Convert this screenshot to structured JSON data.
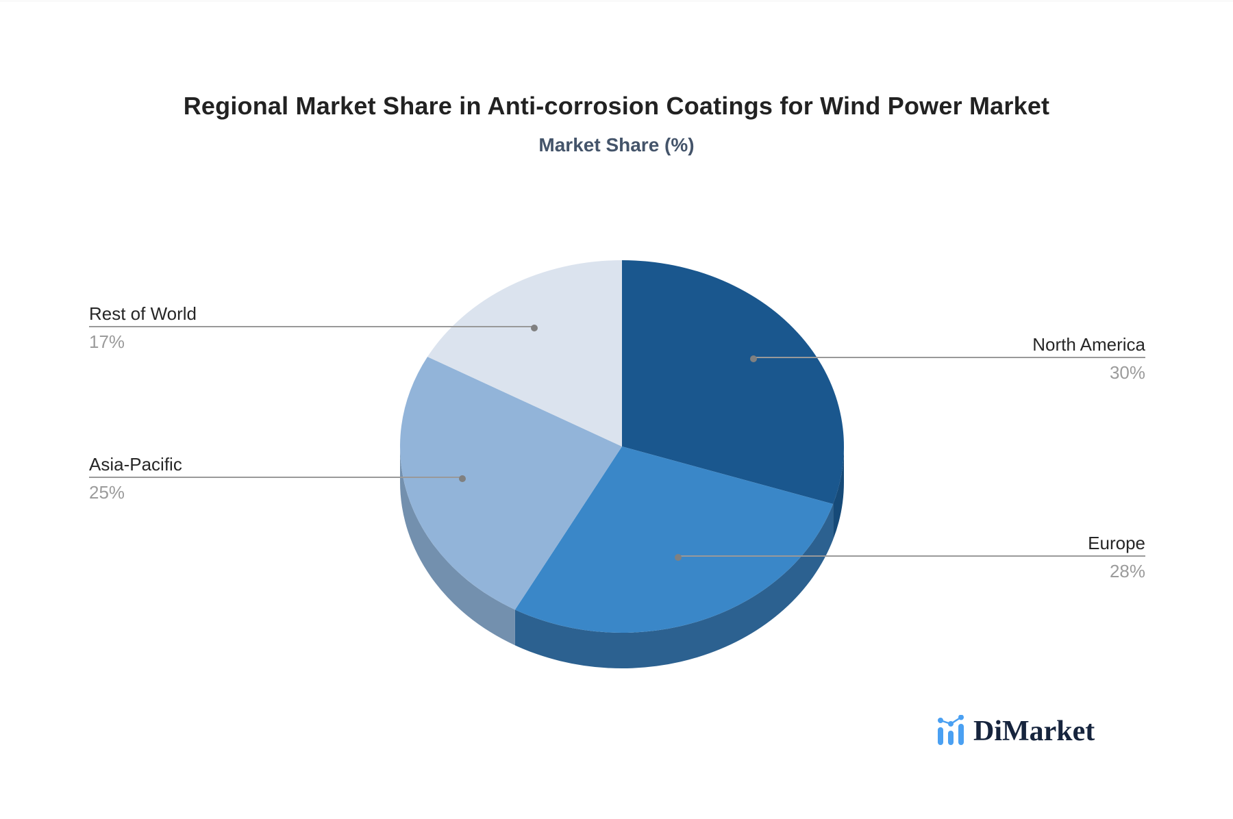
{
  "chart_data": {
    "type": "pie",
    "title": "Regional Market Share in Anti-corrosion Coatings for Wind Power Market",
    "subtitle": "Market Share (%)",
    "effect": "3d",
    "start_angle_deg": -90,
    "direction": "clockwise",
    "legend": "none",
    "slices": [
      {
        "label": "North America",
        "value": 30,
        "pct_label": "30%",
        "color": "#1A578E",
        "side_color": "#164A78",
        "label_side": "right"
      },
      {
        "label": "Europe",
        "value": 28,
        "pct_label": "28%",
        "color": "#3A87C8",
        "side_color": "#2C6190",
        "label_side": "right"
      },
      {
        "label": "Asia-Pacific",
        "value": 25,
        "pct_label": "25%",
        "color": "#92B4D9",
        "side_color": "#7390AE",
        "label_side": "left"
      },
      {
        "label": "Rest of World",
        "value": 17,
        "pct_label": "17%",
        "color": "#DBE3EE",
        "side_color": "#AEBAC9",
        "label_side": "left"
      }
    ],
    "label_text_color": "#262626",
    "pct_text_color": "#9b9b9b",
    "leader_line_color": "#999999",
    "leader_dot_color": "#808080"
  },
  "branding": {
    "name": "DiMarket",
    "icon": "bar-chart-logo-icon",
    "icon_color": "#4AA0F2",
    "text_color": "#16243d"
  }
}
